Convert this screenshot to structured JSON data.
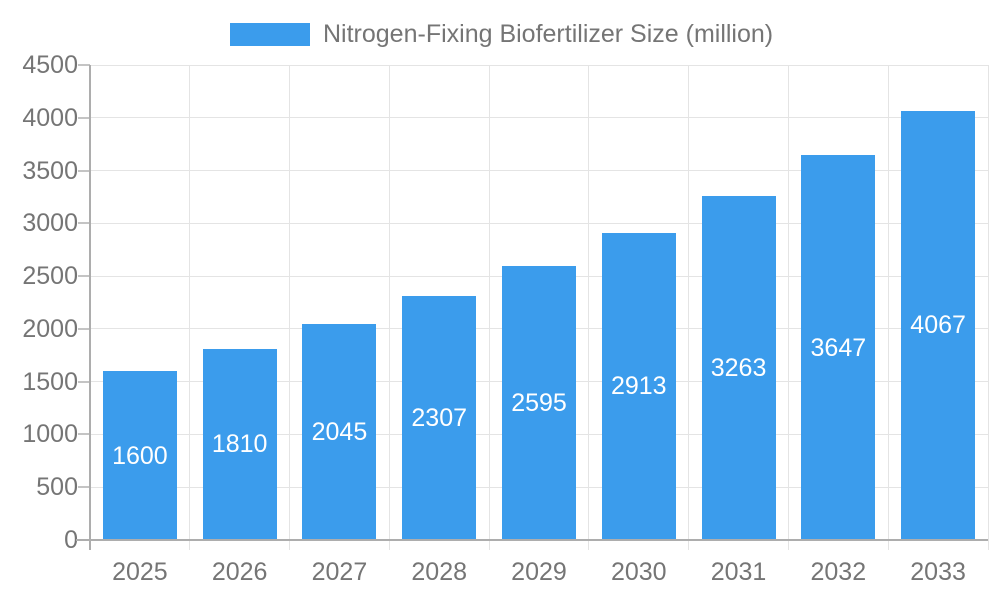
{
  "chart_data": {
    "type": "bar",
    "title": "Nitrogen-Fixing Biofertilizer Size (million)",
    "categories": [
      "2025",
      "2026",
      "2027",
      "2028",
      "2029",
      "2030",
      "2031",
      "2032",
      "2033"
    ],
    "values": [
      1600,
      1810,
      2045,
      2307,
      2595,
      2913,
      3263,
      3647,
      4067
    ],
    "xlabel": "",
    "ylabel": "",
    "ylim": [
      0,
      4500
    ],
    "ytick_step": 500,
    "grid": true,
    "legend_position": "top-center",
    "legend_entries": [
      "Nitrogen-Fixing Biofertilizer Size (million)"
    ]
  },
  "colors": {
    "bar": "#3b9cec",
    "bar_label": "#ffffff",
    "grid": "#e4e4e4",
    "axis": "#adadad",
    "tick": "#c4c4c4",
    "text": "#757575",
    "background": "#ffffff"
  }
}
